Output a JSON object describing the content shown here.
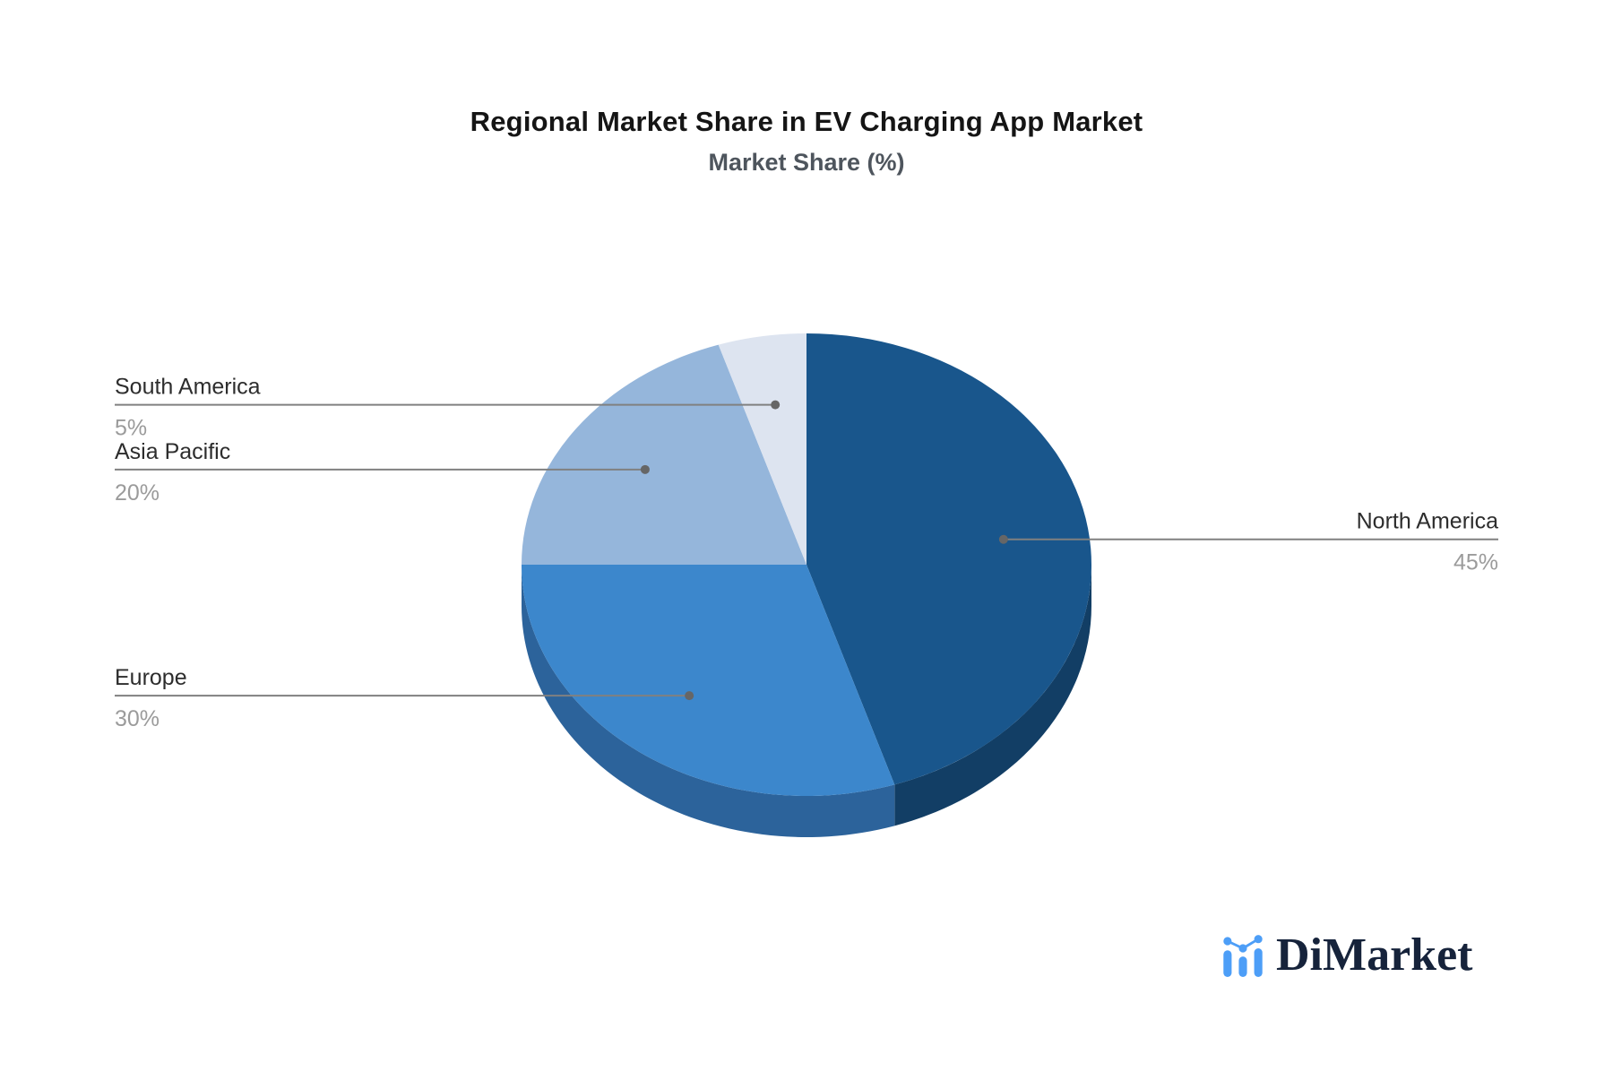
{
  "chart_data": {
    "type": "pie",
    "title": "Regional Market Share in EV Charging App Market",
    "subtitle": "Market Share (%)",
    "unit": "%",
    "style": "3d",
    "direction": "clockwise",
    "start_angle_deg": 0,
    "legend": "none",
    "label_placement": "outside-with-leader-lines",
    "slices": [
      {
        "label": "North America",
        "value": 45,
        "display": "45%",
        "color": "#19568C",
        "depth_color": "#123E65"
      },
      {
        "label": "Europe",
        "value": 30,
        "display": "30%",
        "color": "#3C87CC",
        "depth_color": "#2C639B"
      },
      {
        "label": "Asia Pacific",
        "value": 20,
        "display": "20%",
        "color": "#95B6DB",
        "depth_color": "#6E8AA9"
      },
      {
        "label": "South America",
        "value": 5,
        "display": "5%",
        "color": "#DDE4F0",
        "depth_color": "#A8AEB9"
      }
    ]
  },
  "branding": {
    "logo_text": "DiMarket",
    "logo_icon": "bar-chart-icon",
    "logo_icon_color": "#4D9EF7",
    "logo_text_color": "#16233B"
  },
  "colors": {
    "background": "#FFFFFF",
    "title": "#151515",
    "subtitle": "#4E555D",
    "label_text": "#2D2D2D",
    "percent_text": "#9B9B9B",
    "leader_line": "#808080",
    "leader_dot": "#666666"
  }
}
